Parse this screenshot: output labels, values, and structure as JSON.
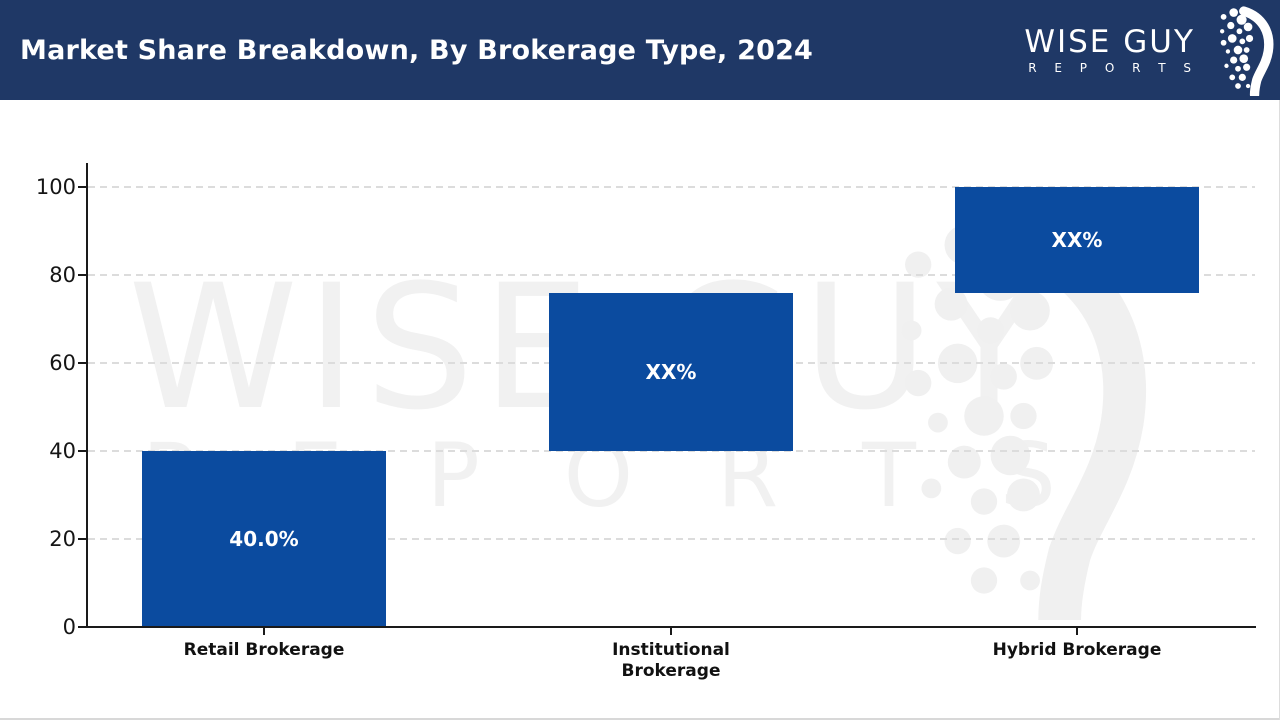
{
  "header": {
    "title": "Market Share Breakdown, By Brokerage Type, 2024",
    "bg_color": "#1f3866",
    "logo": {
      "line1": "WISE GUY",
      "line2": "R E P O R T S"
    }
  },
  "watermark": {
    "line1": "WISE GUY",
    "line2": "R E P O R T S"
  },
  "chart_data": {
    "type": "bar",
    "subtype": "floating-waterfall",
    "title": "Market Share Breakdown, By Brokerage Type, 2024",
    "categories": [
      "Retail Brokerage",
      "Institutional Brokerage",
      "Hybrid Brokerage"
    ],
    "bars": [
      {
        "category": "Retail Brokerage",
        "start": 0,
        "end": 40.0,
        "value": 40.0,
        "label": "40.0%"
      },
      {
        "category": "Institutional Brokerage",
        "start": 40.0,
        "end": 75.9,
        "value": 35.9,
        "label": "XX%"
      },
      {
        "category": "Hybrid Brokerage",
        "start": 75.9,
        "end": 100.0,
        "value": 24.1,
        "label": "XX%"
      }
    ],
    "y_ticks": [
      0,
      20,
      40,
      60,
      80,
      100
    ],
    "ylim": [
      0,
      105
    ],
    "xlabel": "",
    "ylabel": "",
    "bar_color": "#0b4b9f",
    "bar_label_color": "#ffffff",
    "grid": {
      "axis": "y",
      "style": "dashed",
      "color": "#dcdcdc"
    },
    "legend": "none"
  }
}
